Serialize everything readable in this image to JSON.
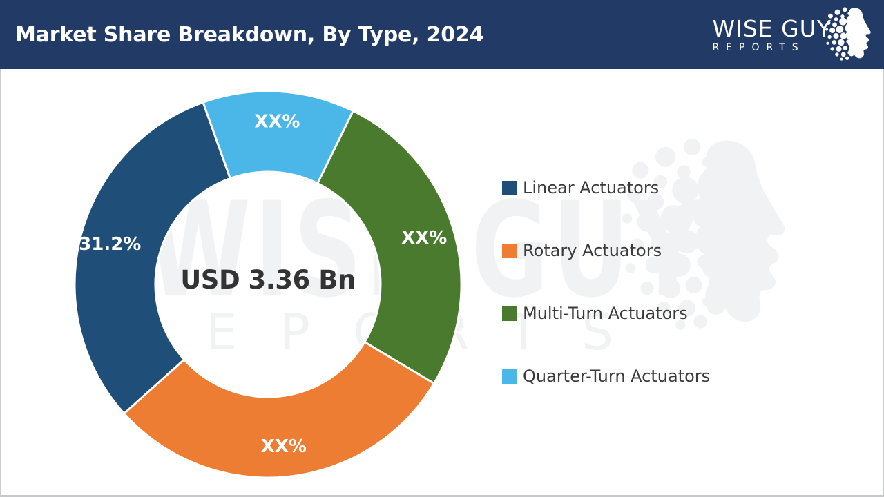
{
  "header": {
    "title": "Market Share Breakdown, By Type, 2024",
    "logo": {
      "line1": "WISE GUY",
      "line2": "REPORTS"
    }
  },
  "watermark": {
    "line1": "WISE GUY",
    "line2": "REPORTS"
  },
  "chart_data": {
    "type": "pie",
    "subtype": "donut",
    "title": "Market Share Breakdown, By Type, 2024",
    "center_label": "USD 3.36 Bn",
    "unit": "%",
    "legend_position": "right",
    "start_angle_deg": 109.6,
    "direction": "counterclockwise",
    "hole_ratio": 0.58,
    "categories": [
      "Linear Actuators",
      "Rotary Actuators",
      "Multi-Turn Actuators",
      "Quarter-Turn Actuators"
    ],
    "values": [
      31.2,
      29.8,
      26.3,
      12.7
    ],
    "segments": [
      {
        "label": "Linear Actuators",
        "value": 31.2,
        "display_label": "31.2%",
        "color": "#1F4E79"
      },
      {
        "label": "Rotary Actuators",
        "value": 29.8,
        "display_label": "XX%",
        "color": "#EC7D33"
      },
      {
        "label": "Multi-Turn Actuators",
        "value": 26.3,
        "display_label": "XX%",
        "color": "#497A2D"
      },
      {
        "label": "Quarter-Turn Actuators",
        "value": 12.7,
        "display_label": "XX%",
        "color": "#4BB7E8"
      }
    ]
  },
  "colors": {
    "header_background": "#223a66",
    "watermark": "#f1f2f4",
    "center_text": "#333333",
    "legend_text": "#3b3b3b",
    "slice_gap": "#ffffff",
    "frame_border": "#cbcccd"
  }
}
